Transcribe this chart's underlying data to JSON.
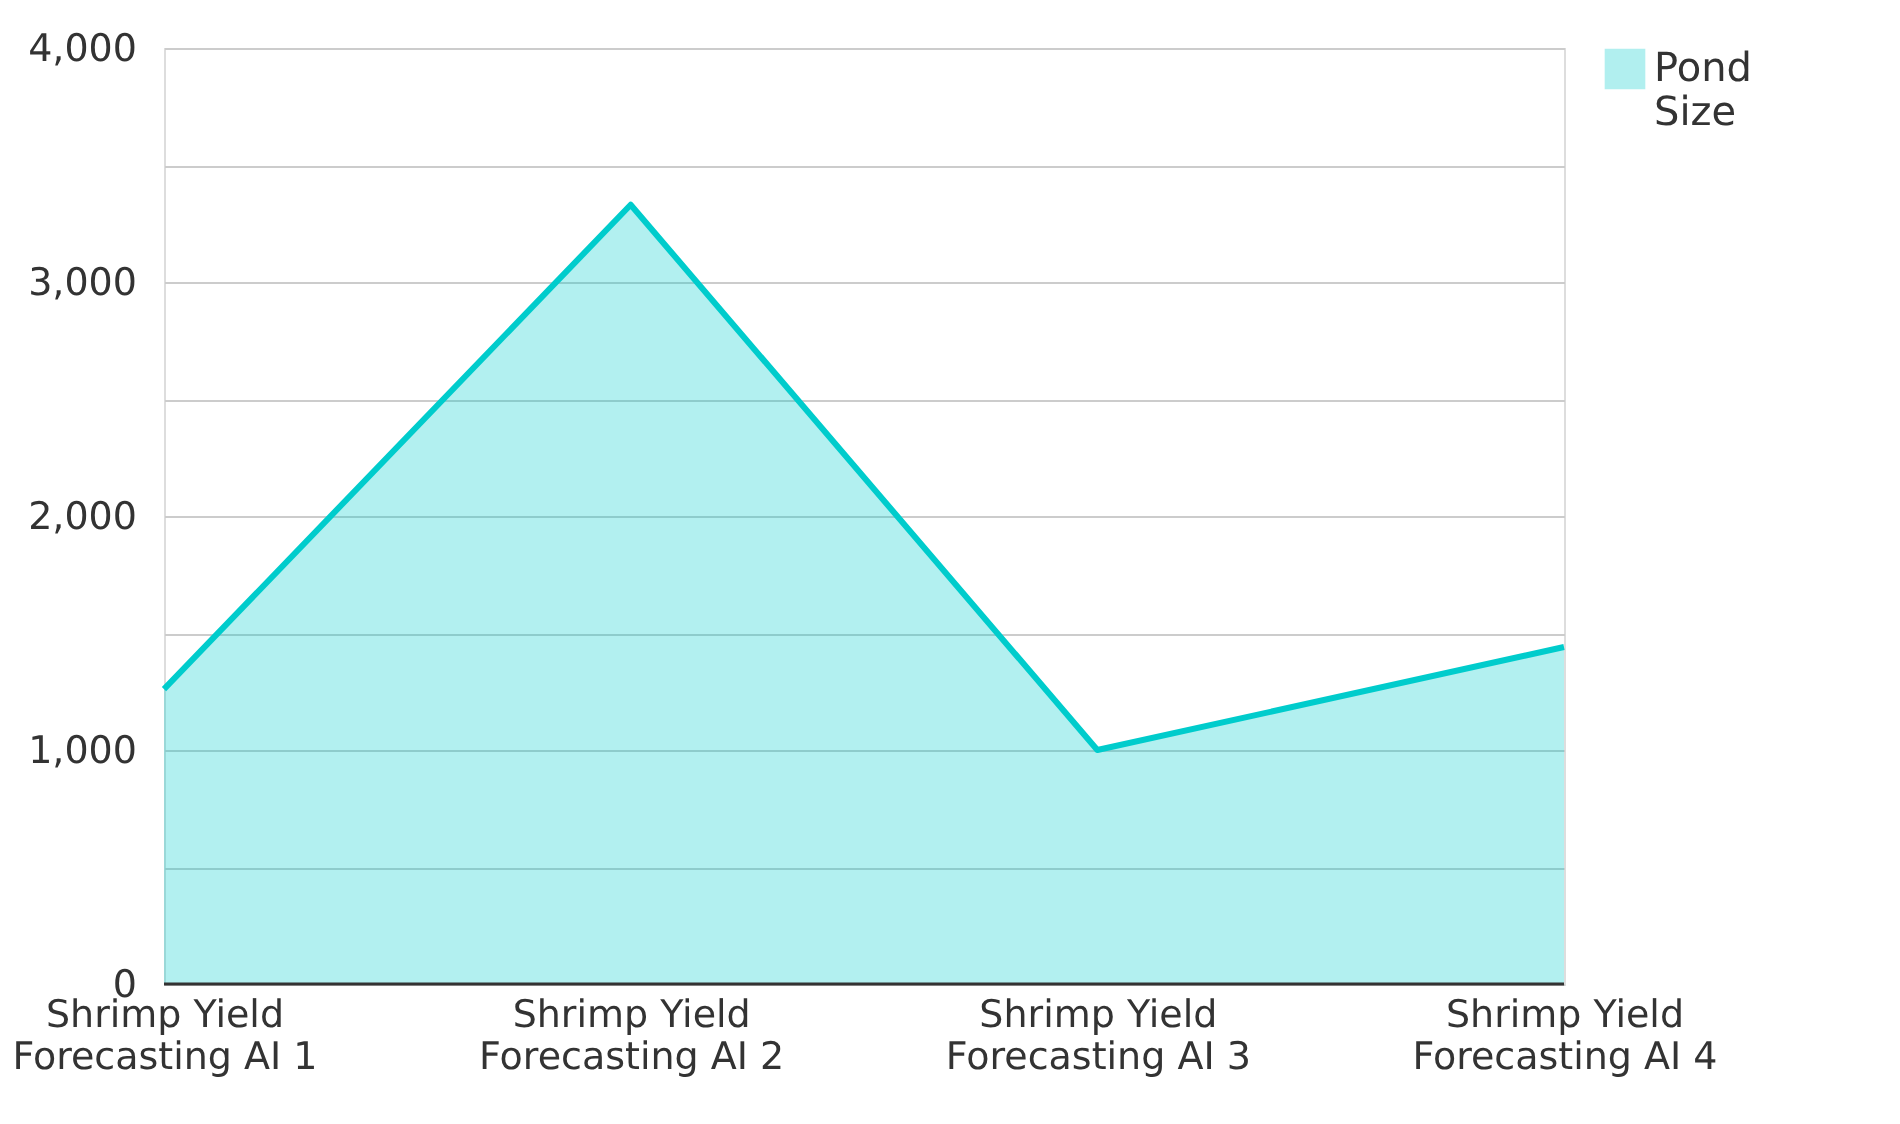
{
  "chart_data": {
    "type": "area",
    "categories": [
      "Shrimp Yield Forecasting AI 1",
      "Shrimp Yield Forecasting AI 2",
      "Shrimp Yield Forecasting AI 3",
      "Shrimp Yield Forecasting AI 4"
    ],
    "series": [
      {
        "name": "Pond Size",
        "color": "#00cccc",
        "values": [
          1260,
          3330,
          1000,
          1440
        ]
      }
    ],
    "ylim": [
      0,
      4000
    ],
    "yticks": [
      0,
      {
        "value": 500,
        "label": null
      },
      {
        "value": 1000,
        "label": "1,000"
      },
      {
        "value": 1500,
        "label": null
      },
      {
        "value": 2000,
        "label": "2,000"
      },
      {
        "value": 2500,
        "label": null
      },
      {
        "value": 3000,
        "label": "3,000"
      },
      {
        "value": 3500,
        "label": null
      },
      {
        "value": 4000,
        "label": "4,000"
      }
    ],
    "grid": "y",
    "legend": "top right"
  }
}
